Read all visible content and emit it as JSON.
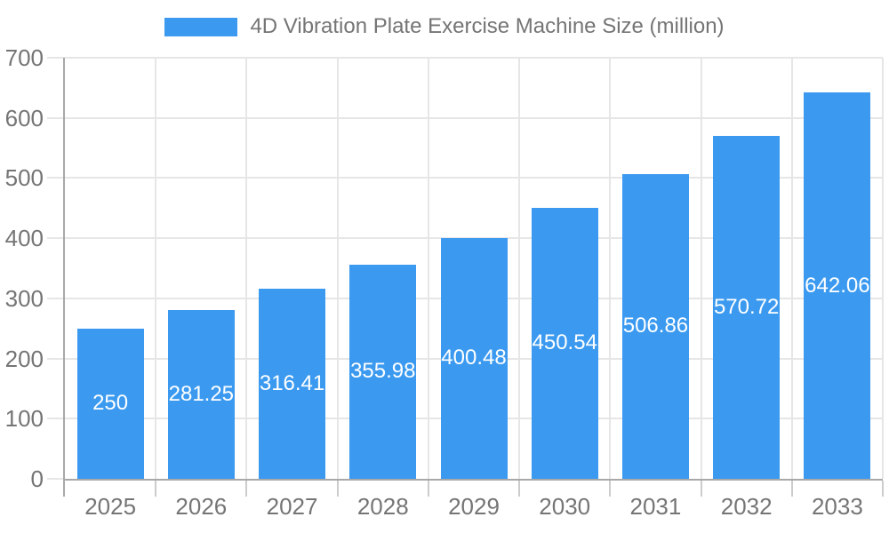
{
  "chart_data": {
    "type": "bar",
    "title": "4D Vibration Plate Exercise Machine Size (million)",
    "categories": [
      "2025",
      "2026",
      "2027",
      "2028",
      "2029",
      "2030",
      "2031",
      "2032",
      "2033"
    ],
    "values": [
      250,
      281.25,
      316.41,
      355.98,
      400.48,
      450.54,
      506.86,
      570.72,
      642.06
    ],
    "value_labels": [
      "250",
      "281.25",
      "316.41",
      "355.98",
      "400.48",
      "450.54",
      "506.86",
      "570.72",
      "642.06"
    ],
    "xlabel": "",
    "ylabel": "",
    "ylim": [
      0,
      700
    ],
    "yticks": [
      0,
      100,
      200,
      300,
      400,
      500,
      600,
      700
    ],
    "grid": true,
    "legend_position": "top",
    "colors": {
      "bar": "#3b9af0",
      "value_label": "#ffffff",
      "axis_line": "#a8a8a8",
      "gridline": "#e6e6e6",
      "tick": "#cccccc",
      "axis_text": "#757575"
    }
  }
}
